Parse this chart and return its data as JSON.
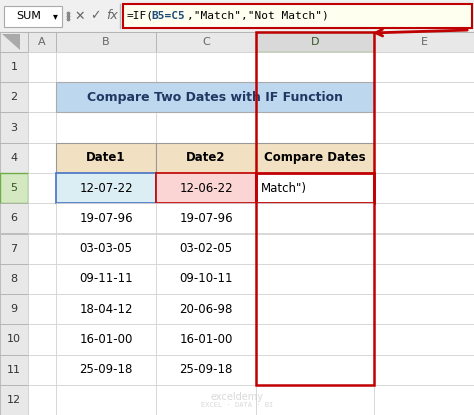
{
  "formula_bar_name": "SUM",
  "formula_bar_text": "=IF(B5=C5,“Match”,“Not Match”)",
  "formula_bar_text_colored": [
    "=IF(",
    "B5=C5",
    ",“Match”,“Not Match”)"
  ],
  "formula_bar_text_plain": "=IF(B5=C5,\"Match\",\"Not Match\")",
  "title": "Compare Two Dates with IF Function",
  "title_color": "#1F3864",
  "table_headers": [
    "Date1",
    "Date2",
    "Compare Dates"
  ],
  "date1": [
    "12-07-22",
    "19-07-96",
    "03-03-05",
    "09-11-11",
    "18-04-12",
    "16-01-00",
    "25-09-18"
  ],
  "date2": [
    "12-06-22",
    "19-07-96",
    "03-02-05",
    "09-10-11",
    "20-06-98",
    "16-01-00",
    "25-09-18"
  ],
  "compare_row5": "Match\")",
  "header_bg": "#F2E0C3",
  "title_bg": "#BDD7EE",
  "toolbar_bg": "#F0F0F0",
  "col_header_bg": "#E8E8E8",
  "col_header_selected_bg": "#D9D9D9",
  "row_header_bg": "#E8E8E8",
  "row_header_selected_bg": "#D4E8C2",
  "row_header_selected_color": "#375623",
  "cell_white": "#FFFFFF",
  "cell_b5_bg": "#DAEEF3",
  "cell_c5_bg": "#FBD4D4",
  "red_border": "#C00000",
  "blue_border": "#4472C4",
  "formula_highlight_bg": "#FFFFF0",
  "formula_bar_text_color": "#000000",
  "formula_ref_color": "#1F4E79",
  "grid_color": "#D0D0D0",
  "arrow_color": "#C00000",
  "watermark_color": "#C0C0C0"
}
